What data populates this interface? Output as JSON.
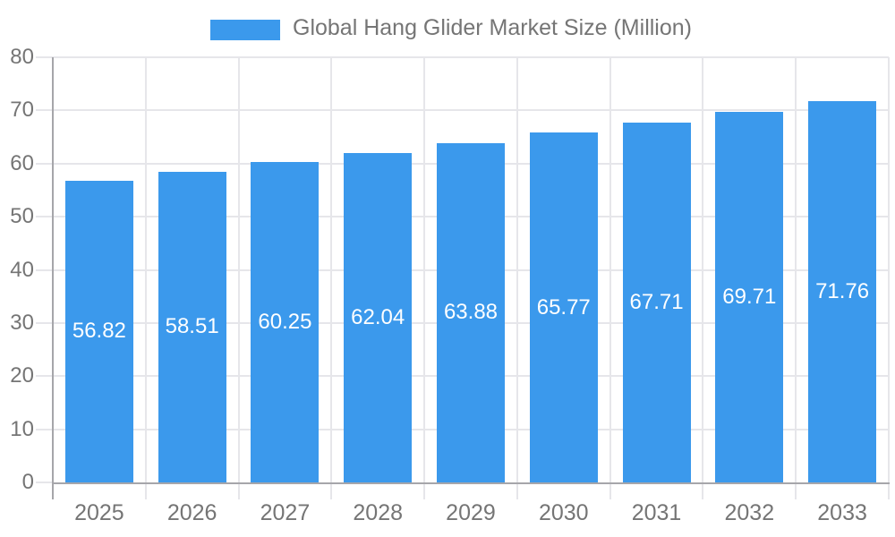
{
  "legend": {
    "label": "Global Hang Glider Market Size (Million)"
  },
  "chart_data": {
    "type": "bar",
    "title": "Global Hang Glider Market Size (Million)",
    "categories": [
      "2025",
      "2026",
      "2027",
      "2028",
      "2029",
      "2030",
      "2031",
      "2032",
      "2033"
    ],
    "series": [
      {
        "name": "Global Hang Glider Market Size (Million)",
        "values": [
          56.82,
          58.51,
          60.25,
          62.04,
          63.88,
          65.77,
          67.71,
          69.71,
          71.76
        ]
      }
    ],
    "value_labels": [
      "56.82",
      "58.51",
      "60.25",
      "62.04",
      "63.88",
      "65.77",
      "67.71",
      "69.71",
      "71.76"
    ],
    "xlabel": "",
    "ylabel": "",
    "ylim": [
      0,
      80
    ],
    "ytick_step": 10,
    "ytick_labels": [
      "0",
      "10",
      "20",
      "30",
      "40",
      "50",
      "60",
      "70",
      "80"
    ],
    "grid": true,
    "legend_position": "top-center",
    "value_label_position": "inside-middle",
    "colors": {
      "bar": "#3B99EC",
      "value_text": "#FFFFFF",
      "axis_text": "#757575",
      "legend_text": "#757575",
      "grid_line": "#E6E6EA",
      "axis_line": "#A6A6AA",
      "background": "#FFFFFF"
    }
  }
}
